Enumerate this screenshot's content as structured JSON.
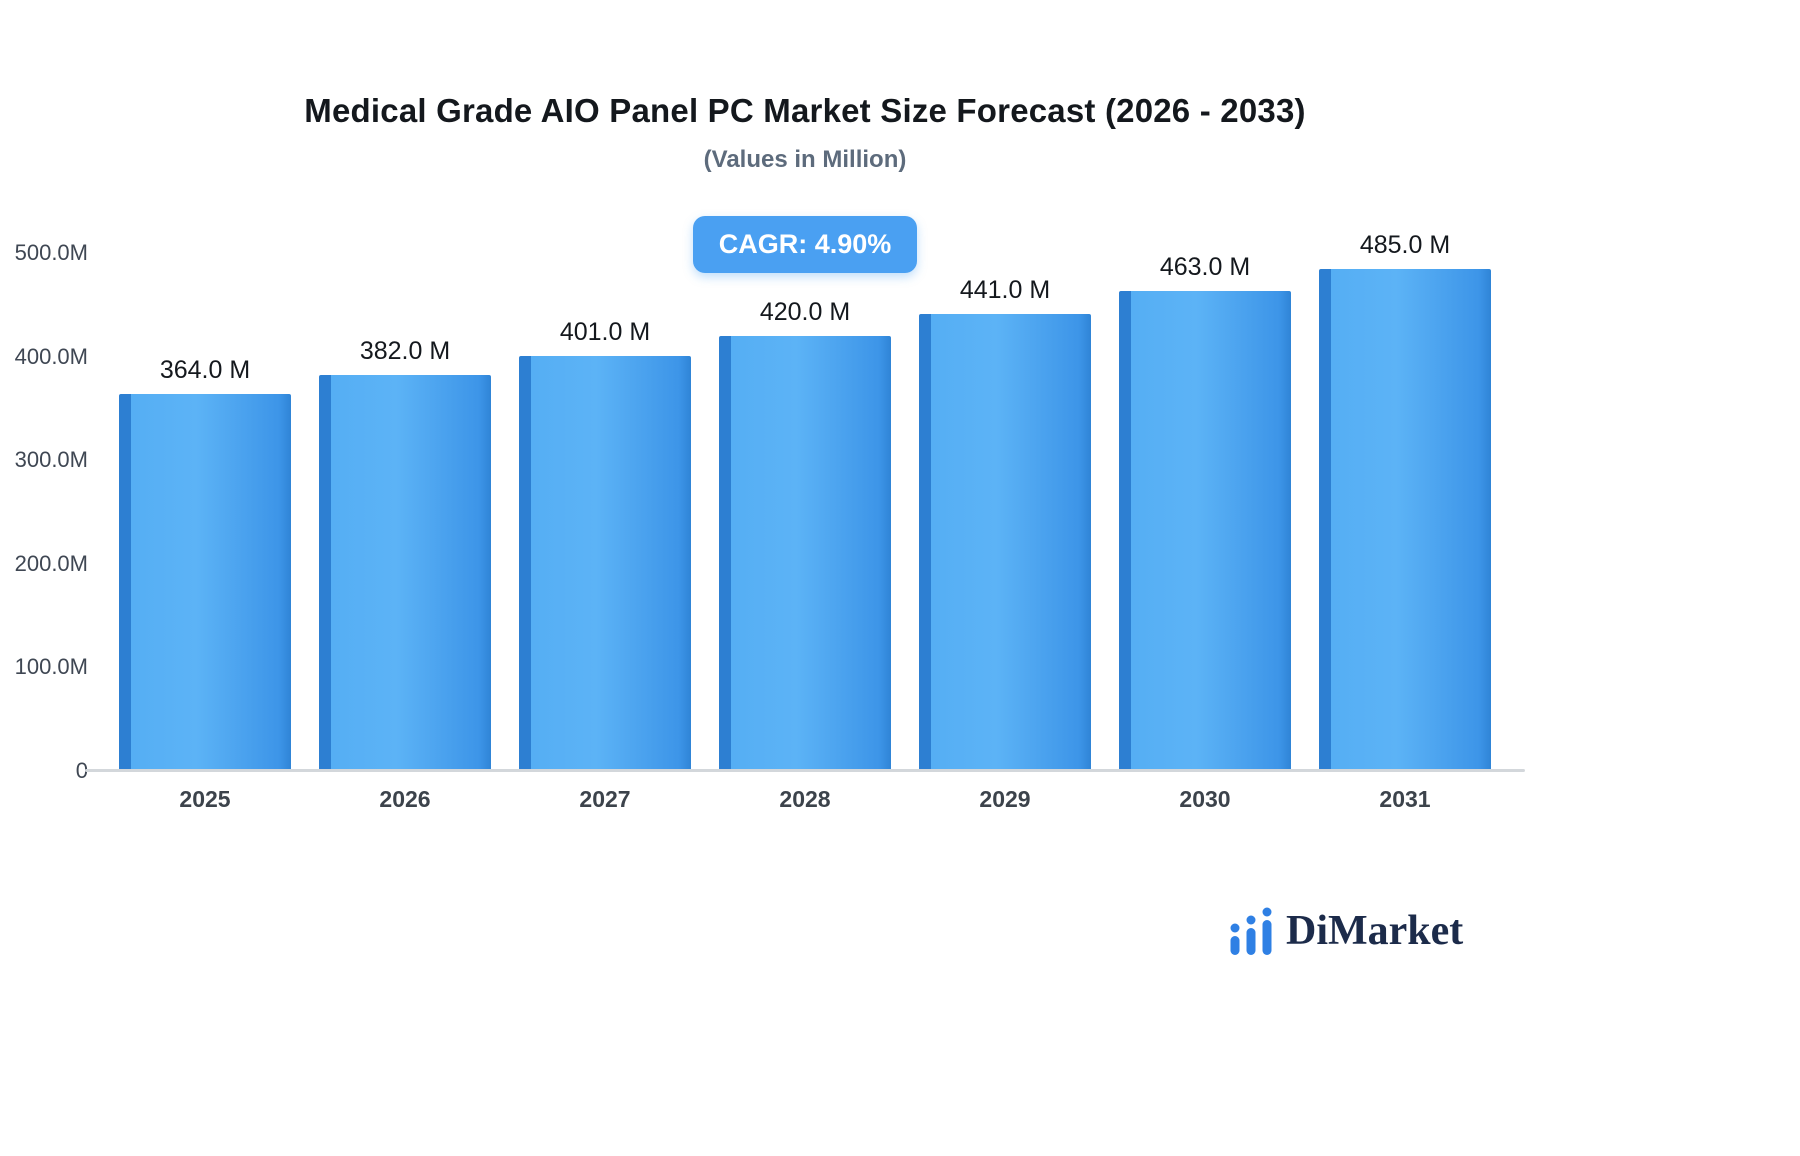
{
  "header": {
    "title": "Medical Grade AIO Panel PC Market Size Forecast (2026 - 2033)",
    "subtitle": "(Values in Million)"
  },
  "badge": {
    "label": "CAGR: 4.90%"
  },
  "logo": {
    "brand": "DiMarket"
  },
  "colors": {
    "bar_main": "#47a3ef",
    "bar_dark": "#2d7fd2",
    "badge_bg": "#4aa0f2",
    "axis_line": "#d3d7db",
    "logo_blue": "#2f80e4",
    "logo_text": "#1c2b4a"
  },
  "chart_data": {
    "type": "bar",
    "title": "Medical Grade AIO Panel PC Market Size Forecast (2026 - 2033)",
    "subtitle": "(Values in Million)",
    "annotation": "CAGR: 4.90%",
    "categories": [
      "2025",
      "2026",
      "2027",
      "2028",
      "2029",
      "2030",
      "2031"
    ],
    "values": [
      364,
      382,
      401,
      420,
      441,
      463,
      485
    ],
    "value_labels": [
      "364.0 M",
      "382.0 M",
      "401.0 M",
      "420.0 M",
      "441.0 M",
      "463.0 M",
      "485.0 M"
    ],
    "unit": "Million",
    "xlabel": "",
    "ylabel": "",
    "ylim": [
      0,
      500
    ],
    "yticks": [
      {
        "value": 0,
        "label": "0"
      },
      {
        "value": 100,
        "label": "100.0M"
      },
      {
        "value": 200,
        "label": "200.0M"
      },
      {
        "value": 300,
        "label": "300.0M"
      },
      {
        "value": 400,
        "label": "400.0M"
      },
      {
        "value": 500,
        "label": "500.0M"
      }
    ],
    "grid": false,
    "legend": "none"
  }
}
